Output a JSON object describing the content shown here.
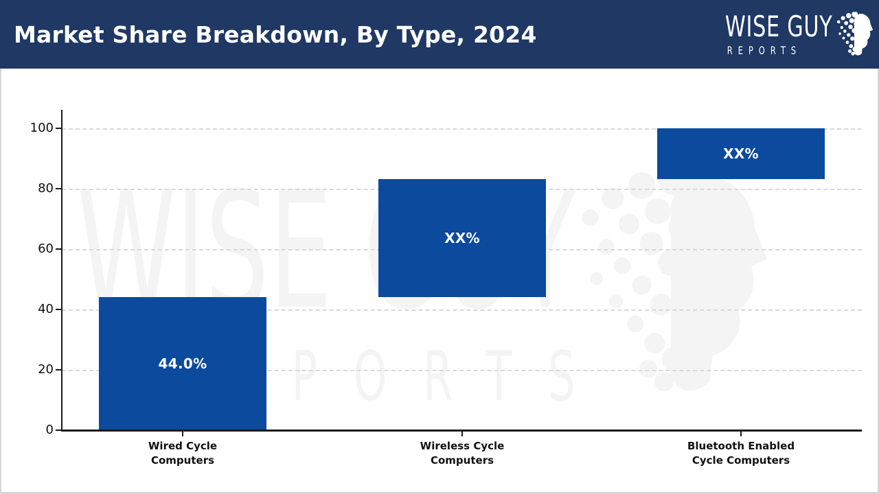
{
  "header": {
    "title": "Market Share Breakdown, By Type, 2024"
  },
  "brand": {
    "wordmark": "WISE GUY",
    "subtitle": "REPORTS"
  },
  "chart_data": {
    "type": "bar",
    "variant": "waterfall-floating-bars",
    "title": "Market Share Breakdown, By Type, 2024",
    "categories": [
      "Wired Cycle\nComputers",
      "Wireless Cycle\nComputers",
      "Bluetooth Enabled\nCycle Computers"
    ],
    "segments": [
      {
        "category": "Wired Cycle Computers",
        "start": 0,
        "end": 44,
        "label": "44.0%"
      },
      {
        "category": "Wireless Cycle Computers",
        "start": 44,
        "end": 83,
        "label": "XX%"
      },
      {
        "category": "Bluetooth Enabled Cycle Computers",
        "start": 83,
        "end": 100,
        "label": "XX%"
      }
    ],
    "yticks": [
      0,
      20,
      40,
      60,
      80,
      100
    ],
    "ylim": [
      0,
      106
    ],
    "grid": "horizontal-dashed",
    "legend": "none",
    "colors": {
      "header_bg": "#1F3864",
      "bar": "#0C4A9E",
      "bar_label": "#FFFFFF",
      "axis": "#1A1A1A",
      "gridline": "#D9D9D9",
      "tick_label": "#111111",
      "watermark": "#F4F4F4"
    }
  }
}
